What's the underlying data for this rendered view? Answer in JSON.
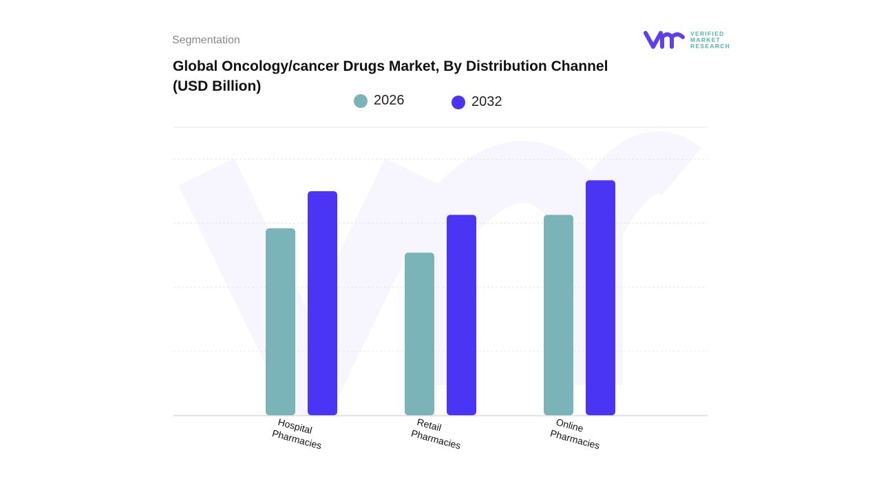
{
  "header": {
    "segment_label": "Segmentation",
    "brand": "VERIFIED MARKET RESEARCH",
    "brand_lines": [
      "VERIFIED",
      "MARKET",
      "RESEARCH"
    ]
  },
  "colors": {
    "2026": "#7ab4b8",
    "2032": "#4b35f5",
    "brand_purple": "#5b3ff0",
    "brand_teal": "#4fb3b0"
  },
  "chart_data": {
    "type": "bar",
    "title": "Global Oncology/cancer Drugs Market, By Distribution Channel (USD Billion)",
    "categories": [
      "Hospital Pharmacies",
      "Retail Pharmacies",
      "Online Pharmacies"
    ],
    "category_lines": [
      [
        "Hospital",
        "Pharmacies"
      ],
      [
        "Retail",
        "Pharmacies"
      ],
      [
        "Online",
        "Pharmacies"
      ]
    ],
    "series": [
      {
        "name": "2026",
        "values": [
          29.2,
          25.4,
          31.3
        ]
      },
      {
        "name": "2032",
        "values": [
          35.0,
          31.3,
          36.7
        ]
      }
    ],
    "ylim": [
      0,
      45
    ],
    "grid": true,
    "legend": "top-center",
    "xlabel": "",
    "ylabel": ""
  }
}
